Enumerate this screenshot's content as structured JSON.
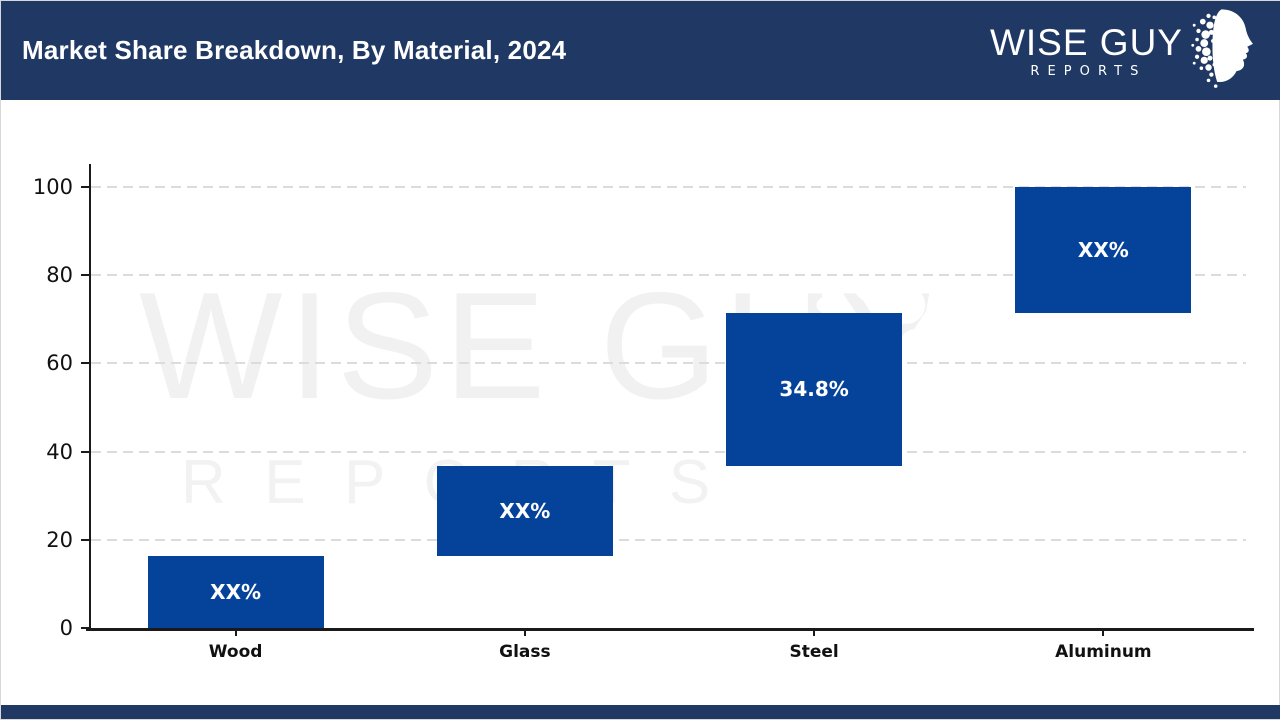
{
  "header": {
    "title": "Market Share Breakdown, By Material, 2024",
    "logo_line1": "WISE GUY",
    "logo_line2": "REPORTS"
  },
  "watermark": {
    "line1": "WISE GUY",
    "line2": "REPORTS"
  },
  "chart_data": {
    "type": "bar",
    "variant": "waterfall",
    "title": "Market Share Breakdown, By Material, 2024",
    "categories": [
      "Wood",
      "Glass",
      "Steel",
      "Aluminum"
    ],
    "segments": [
      {
        "category": "Wood",
        "start": 0,
        "end": 16.4,
        "value": 16.4,
        "label": "XX%"
      },
      {
        "category": "Glass",
        "start": 16.4,
        "end": 36.7,
        "value": 20.3,
        "label": "XX%"
      },
      {
        "category": "Steel",
        "start": 36.7,
        "end": 71.5,
        "value": 34.8,
        "label": "34.8%"
      },
      {
        "category": "Aluminum",
        "start": 71.5,
        "end": 100,
        "value": 28.5,
        "label": "XX%"
      }
    ],
    "yticks": [
      0,
      20,
      40,
      60,
      80,
      100
    ],
    "ylim": [
      0,
      105.2
    ],
    "xlabel": "",
    "ylabel": "",
    "grid": "dashed-horizontal",
    "legend": "none",
    "bar_color": "#05439b",
    "bar_label_color": "#ffffff"
  },
  "colors": {
    "header_bg": "#1f3864",
    "footer_bg": "#1f3864",
    "bar": "#05439b",
    "grid": "#dcdcdc",
    "axis": "#1a1a1a",
    "watermark": "#f1f1f1",
    "page_bg": "#ffffff"
  }
}
